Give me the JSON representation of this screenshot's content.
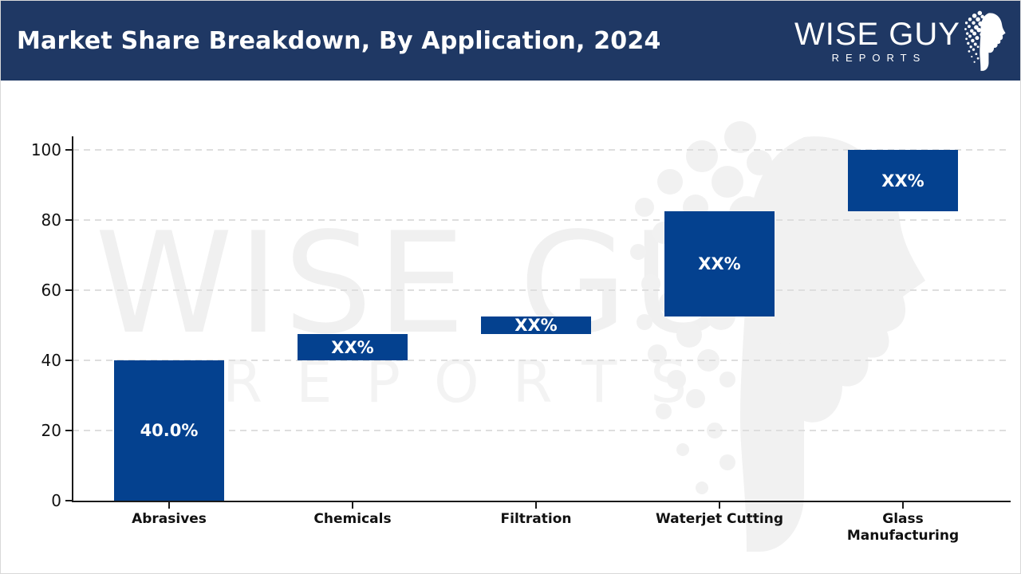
{
  "header": {
    "title": "Market Share Breakdown, By Application, 2024",
    "logo_line1": "WISE GUY",
    "logo_line2": "REPORTS"
  },
  "watermark": {
    "line1": "WISE GUY",
    "line2": "REPORTS"
  },
  "colors": {
    "header_bg": "#1f3864",
    "bar": "#04418f",
    "bar_label": "#ffffff",
    "grid": "#dedede",
    "axis": "#1a1a1a",
    "watermark": "#f1f1f1"
  },
  "chart_data": {
    "type": "bar",
    "subtype": "waterfall",
    "title": "Market Share Breakdown, By Application, 2024",
    "categories": [
      "Abrasives",
      "Chemicals",
      "Filtration",
      "Waterjet Cutting",
      "Glass\nManufacturing"
    ],
    "bar_labels": [
      "40.0%",
      "XX%",
      "XX%",
      "XX%",
      "XX%"
    ],
    "segments": [
      [
        0,
        40
      ],
      [
        40,
        47.5
      ],
      [
        47.5,
        52.5
      ],
      [
        52.5,
        82.5
      ],
      [
        82.5,
        100
      ]
    ],
    "values": [
      40,
      7.5,
      5,
      30,
      17.5
    ],
    "unit": "%",
    "xlabel": "",
    "ylabel": "",
    "y_ticks": [
      0,
      20,
      40,
      60,
      80,
      100
    ],
    "ylim": [
      0,
      104
    ],
    "grid": "horizontal-dashed",
    "legend_position": "none",
    "bar_color": "#04418f",
    "label_color": "#ffffff"
  }
}
